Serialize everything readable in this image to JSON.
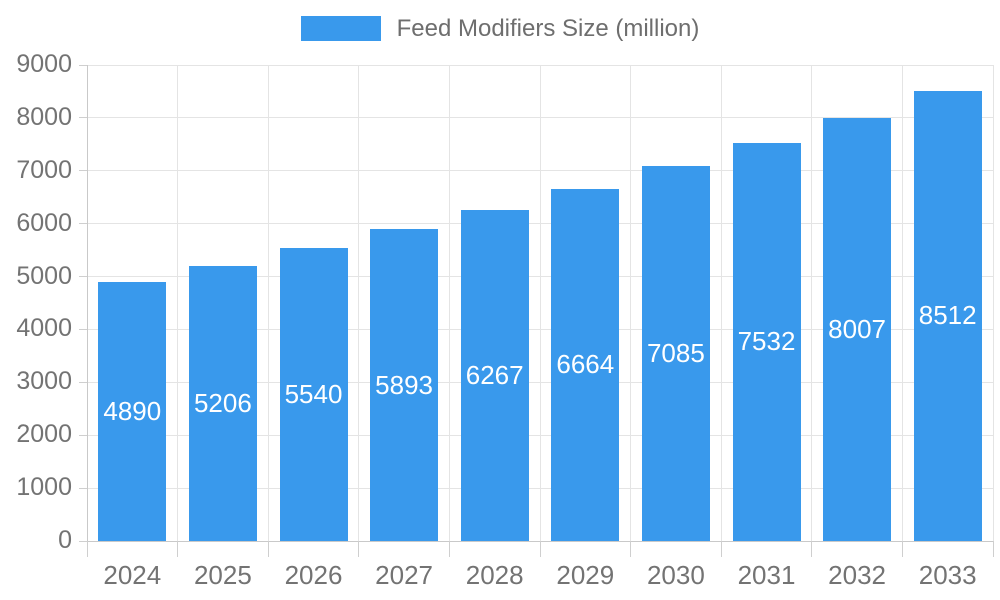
{
  "legend": {
    "label": "Feed Modifiers Size (million)"
  },
  "colors": {
    "bar": "#3999EC",
    "grid": "#E4E4E4",
    "axis": "#C9C9C9",
    "tick": "#CFCFCF",
    "axis_text": "#737373",
    "legend_text": "#6E6E6E",
    "bar_label": "#FFFFFF",
    "background": "#FFFFFF"
  },
  "chart_data": {
    "type": "bar",
    "title": "Feed Modifiers Size (million)",
    "categories": [
      "2024",
      "2025",
      "2026",
      "2027",
      "2028",
      "2029",
      "2030",
      "2031",
      "2032",
      "2033"
    ],
    "values": [
      4890,
      5206,
      5540,
      5893,
      6267,
      6664,
      7085,
      7532,
      8007,
      8512
    ],
    "xlabel": "",
    "ylabel": "",
    "ylim": [
      0,
      9000
    ],
    "ytick_step": 1000,
    "y_tick_labels": [
      "0",
      "1000",
      "2000",
      "3000",
      "4000",
      "5000",
      "6000",
      "7000",
      "8000",
      "9000"
    ],
    "grid": "both",
    "legend_position": "top-center",
    "bar_labels": "inside-centered"
  }
}
